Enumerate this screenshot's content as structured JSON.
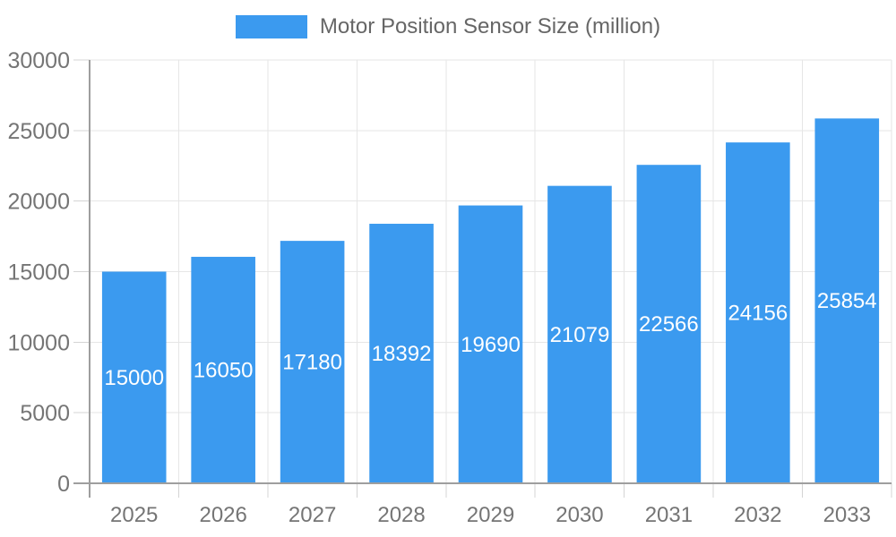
{
  "legend": {
    "label": "Motor Position Sensor Size (million)"
  },
  "chart_data": {
    "type": "bar",
    "title": "Motor Position Sensor Size (million)",
    "series_name": "Motor Position Sensor Size (million)",
    "categories": [
      "2025",
      "2026",
      "2027",
      "2028",
      "2029",
      "2030",
      "2031",
      "2032",
      "2033"
    ],
    "values": [
      15000,
      16050,
      17180,
      18392,
      19690,
      21079,
      22566,
      24156,
      25854
    ],
    "value_labels": [
      "15000",
      "16050",
      "17180",
      "18392",
      "19690",
      "21079",
      "22566",
      "24156",
      "25854"
    ],
    "xlabel": "",
    "ylabel": "",
    "ylim": [
      0,
      30000
    ],
    "yticks": [
      0,
      5000,
      10000,
      15000,
      20000,
      25000,
      30000
    ],
    "ytick_labels": [
      "0",
      "5000",
      "10000",
      "15000",
      "20000",
      "25000",
      "30000"
    ],
    "grid": true,
    "legend_position": "top-center",
    "bar_color": "#3B9AEF",
    "value_label_color": "#FFFFFF",
    "axis_label_color": "#757575",
    "legend_label_color": "#666666",
    "grid_color": "#E6E6E6",
    "tick_color": "#D4D4D4",
    "axis_line_color": "#9E9E9E",
    "background_color": "#FFFFFF"
  }
}
